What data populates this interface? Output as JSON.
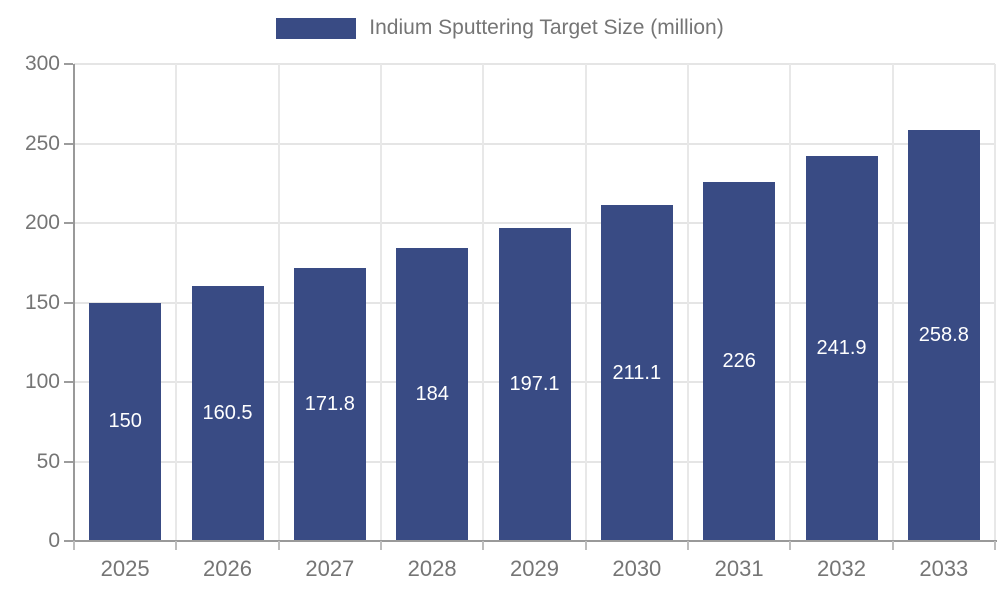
{
  "legend": {
    "label": "Indium Sputtering Target Size (million)"
  },
  "chart_data": {
    "type": "bar",
    "title": "Indium Sputtering Target Size (million)",
    "categories": [
      "2025",
      "2026",
      "2027",
      "2028",
      "2029",
      "2030",
      "2031",
      "2032",
      "2033"
    ],
    "values": [
      150,
      160.5,
      171.8,
      184,
      197.1,
      211.1,
      226,
      241.9,
      258.8
    ],
    "value_labels": [
      "150",
      "160.5",
      "171.8",
      "184",
      "197.1",
      "211.1",
      "226",
      "241.9",
      "258.8"
    ],
    "xlabel": "",
    "ylabel": "",
    "ylim": [
      0,
      300
    ],
    "yticks": [
      0,
      50,
      100,
      150,
      200,
      250,
      300
    ],
    "grid": true,
    "legend_position": "top-center",
    "bar_color": "#394b84",
    "bar_label_color": "#ffffff",
    "axis_text_color": "#757575",
    "grid_color": "#e5e5e5",
    "axis_line_color": "#999999"
  }
}
